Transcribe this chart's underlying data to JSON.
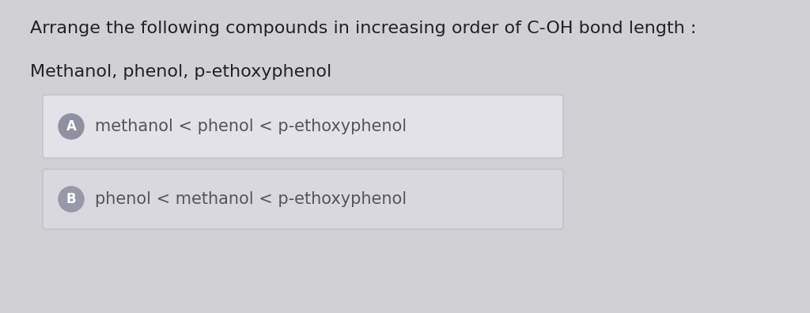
{
  "title_line1": "Arrange the following compounds in increasing order of C-OH bond length :",
  "subtitle": "Methanol, phenol, p-ethoxyphenol",
  "options": [
    {
      "label": "A",
      "text": "methanol < phenol < p-ethoxyphenol"
    },
    {
      "label": "B",
      "text": "phenol < methanol < p-ethoxyphenol"
    }
  ],
  "bg_color": "#d0d0d5",
  "card_color_a": "#e2e2e8",
  "card_color_b": "#d8d8de",
  "card_edge_color": "#c0c0c8",
  "title_color": "#222222",
  "subtitle_color": "#222222",
  "option_text_color": "#555560",
  "option_label_bg_a": "#9090a0",
  "option_label_bg_b": "#9898a8",
  "option_label_color": "#ffffff",
  "title_fontsize": 16,
  "subtitle_fontsize": 16,
  "option_fontsize": 15
}
